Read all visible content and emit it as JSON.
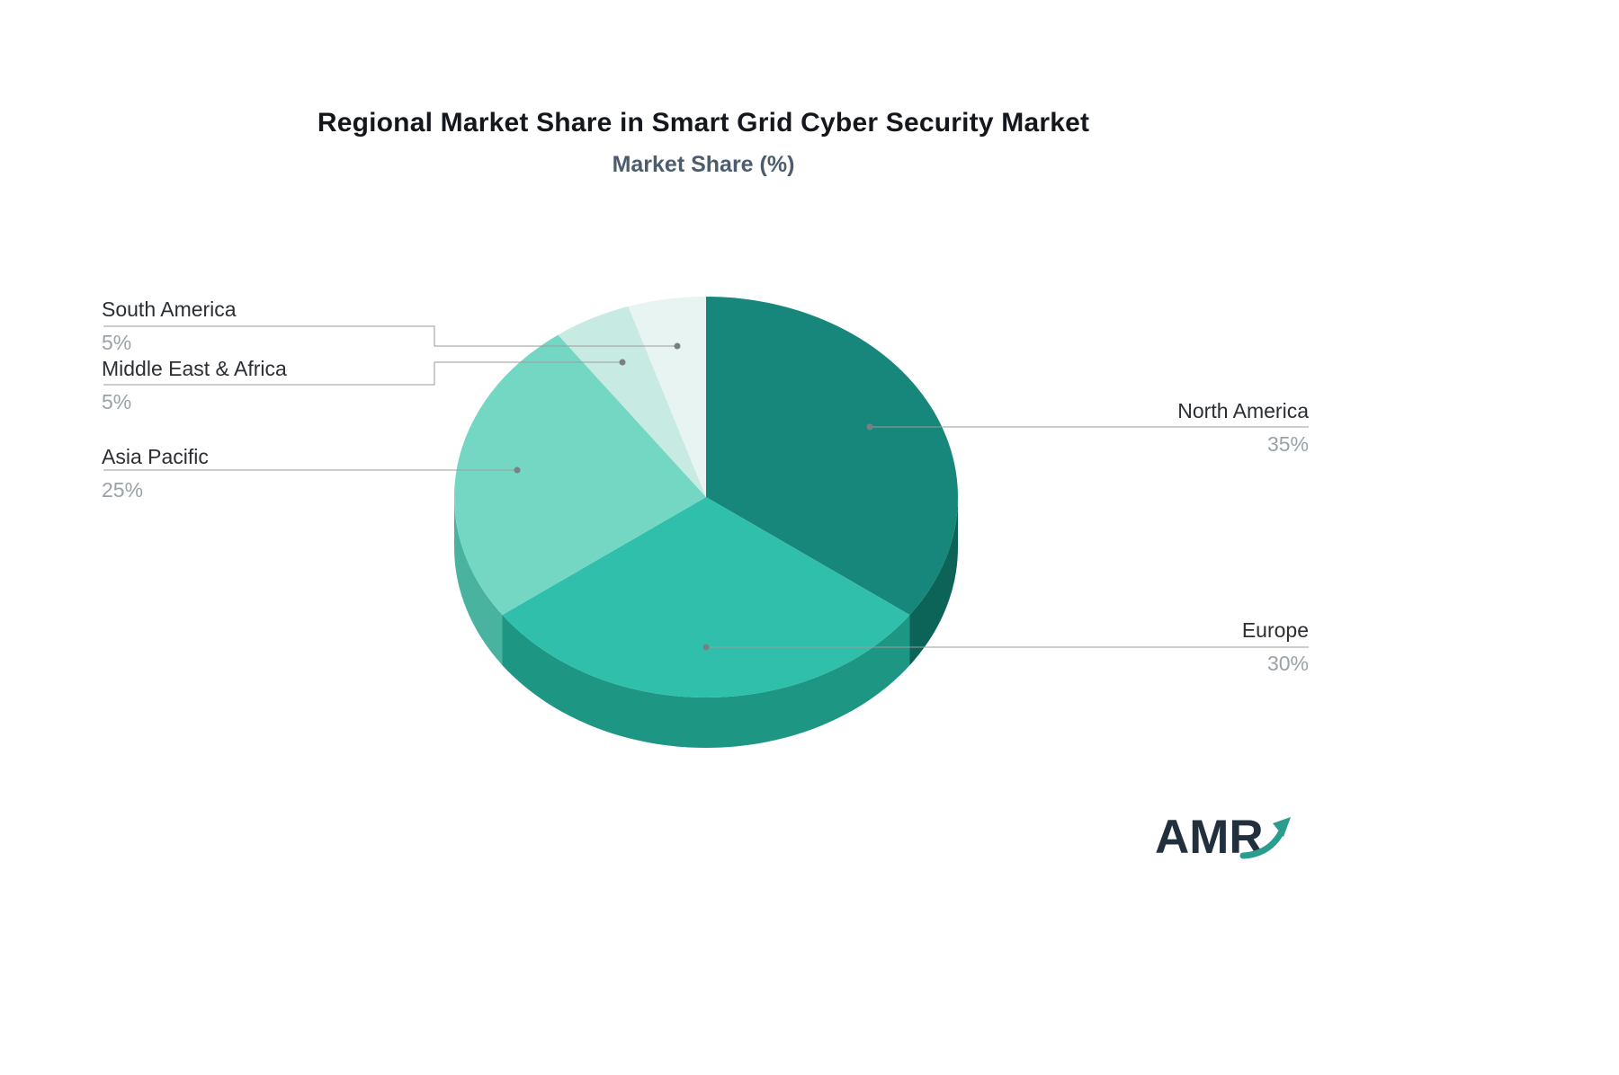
{
  "title": "Regional Market Share in Smart Grid Cyber Security Market",
  "subtitle": "Market Share (%)",
  "logo": {
    "text": "AMR",
    "arrow_color": "#2a9d8f",
    "text_color": "#22303e"
  },
  "chart_data": {
    "type": "pie",
    "title": "Regional Market Share in Smart Grid Cyber Security Market",
    "subtitle": "Market Share (%)",
    "unit": "%",
    "effect": "3d",
    "direction": "clockwise",
    "start_angle_deg": 0,
    "legend": "none",
    "leader_line_color": "#9b9b9b",
    "label_color": "#2b2f33",
    "value_color": "#9aa2a9",
    "slices": [
      {
        "label": "North America",
        "value": 35,
        "display": "35%",
        "color": "#17877b",
        "side_color": "#0c6459",
        "label_side": "right"
      },
      {
        "label": "Europe",
        "value": 30,
        "display": "30%",
        "color": "#30bfab",
        "side_color": "#1d9683",
        "label_side": "right"
      },
      {
        "label": "Asia Pacific",
        "value": 25,
        "display": "25%",
        "color": "#74d7c4",
        "side_color": "#4ab3a0",
        "label_side": "left"
      },
      {
        "label": "Middle East & Africa",
        "value": 5,
        "display": "5%",
        "color": "#c7eae3",
        "side_color": "#9fd4ca",
        "label_side": "left"
      },
      {
        "label": "South America",
        "value": 5,
        "display": "5%",
        "color": "#e8f4f1",
        "side_color": "#cfe8e3",
        "label_side": "left"
      }
    ]
  }
}
